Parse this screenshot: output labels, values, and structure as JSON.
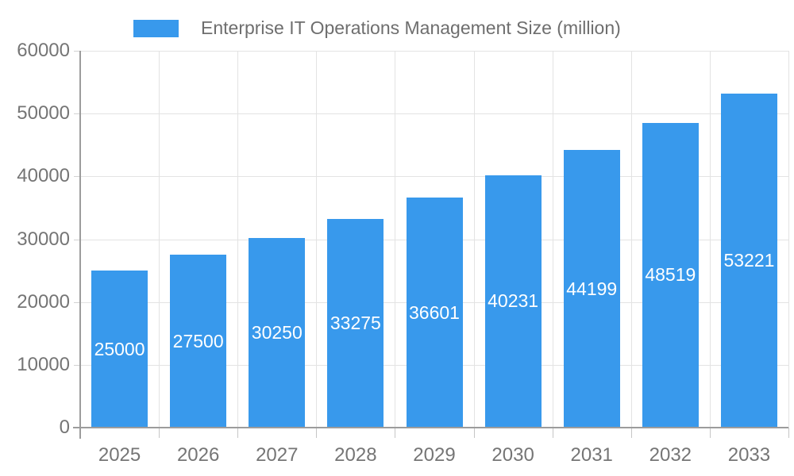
{
  "chart_data": {
    "type": "bar",
    "title": "Enterprise IT Operations Management Size (million)",
    "legend": [
      "Enterprise IT Operations Management Size (million)"
    ],
    "legend_position": "top",
    "categories": [
      "2025",
      "2026",
      "2027",
      "2028",
      "2029",
      "2030",
      "2031",
      "2032",
      "2033"
    ],
    "values": [
      25000,
      27500,
      30250,
      33275,
      36601,
      40231,
      44199,
      48519,
      53221
    ],
    "value_labels": [
      "25000",
      "27500",
      "30250",
      "33275",
      "36601",
      "40231",
      "44199",
      "48519",
      "53221"
    ],
    "xlabel": "",
    "ylabel": "",
    "ylim": [
      0,
      60000
    ],
    "y_tick_step": 10000,
    "y_tick_labels": [
      "0",
      "10000",
      "20000",
      "30000",
      "40000",
      "50000",
      "60000"
    ],
    "grid": true,
    "bar_color": "#3899EC",
    "value_label_color": "#ffffff",
    "axis_label_color": "#757575",
    "legend_text_color": "#6e6e6e"
  }
}
